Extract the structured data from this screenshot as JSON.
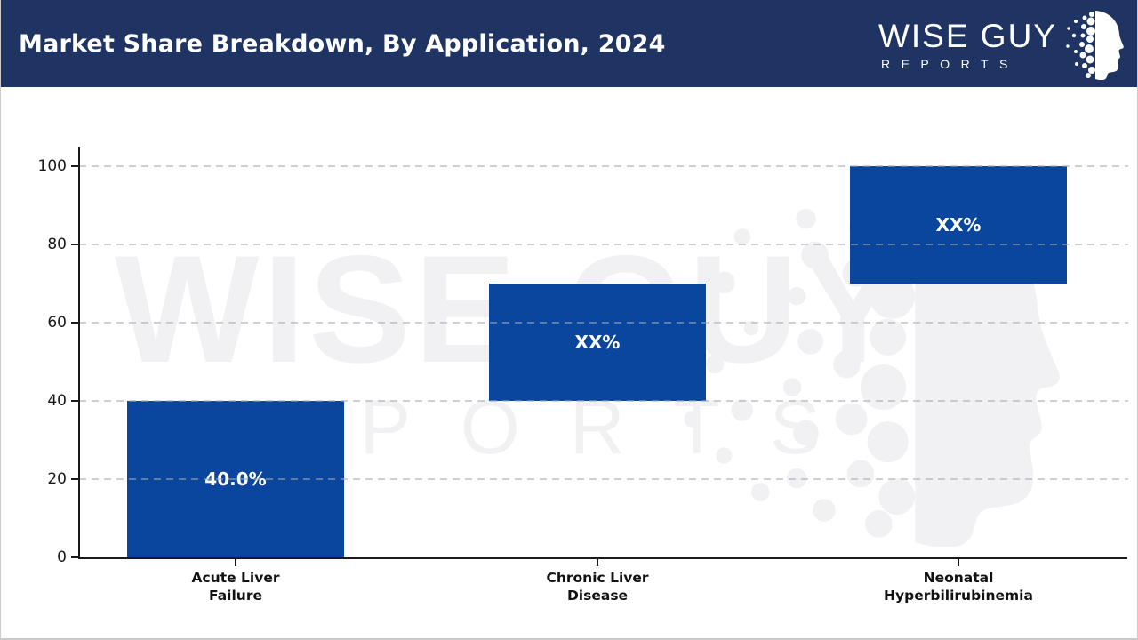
{
  "header": {
    "title": "Market Share Breakdown, By Application, 2024",
    "logo": {
      "line1": "WISE GUY",
      "line2": "REPORTS"
    }
  },
  "watermark": {
    "line1": "WISE GUY",
    "line2": "REPORTS"
  },
  "colors": {
    "header_bg": "#1f3462",
    "bar": "#0a469e",
    "grid_dash": "#d7dade",
    "axis": "#1a1a1a",
    "watermark": "#f1f1f4",
    "on_bar_text": "#ffffff",
    "category_text": "#111111",
    "page_border": "#cccccc"
  },
  "chart_data": {
    "type": "bar",
    "subtype": "waterfall-floating-bars",
    "title": "Market Share Breakdown, By Application, 2024",
    "categories": [
      [
        "Acute Liver",
        "Failure"
      ],
      [
        "Chronic Liver",
        "Disease"
      ],
      [
        "Neonatal",
        "Hyperbilirubinemia"
      ]
    ],
    "bars": [
      {
        "category": "Acute Liver Failure",
        "start": 0,
        "end": 40,
        "label": "40.0%"
      },
      {
        "category": "Chronic Liver Disease",
        "start": 40,
        "end": 70,
        "label": "XX%"
      },
      {
        "category": "Neonatal Hyperbilirubinemia",
        "start": 70,
        "end": 100,
        "label": "XX%"
      }
    ],
    "yticks": [
      0,
      20,
      40,
      60,
      80,
      100
    ],
    "ylim": [
      0,
      105
    ],
    "xlabel": "",
    "ylabel": "",
    "grid": "horizontal-dashed",
    "legend": "none",
    "bar_color": "#0a469e"
  }
}
